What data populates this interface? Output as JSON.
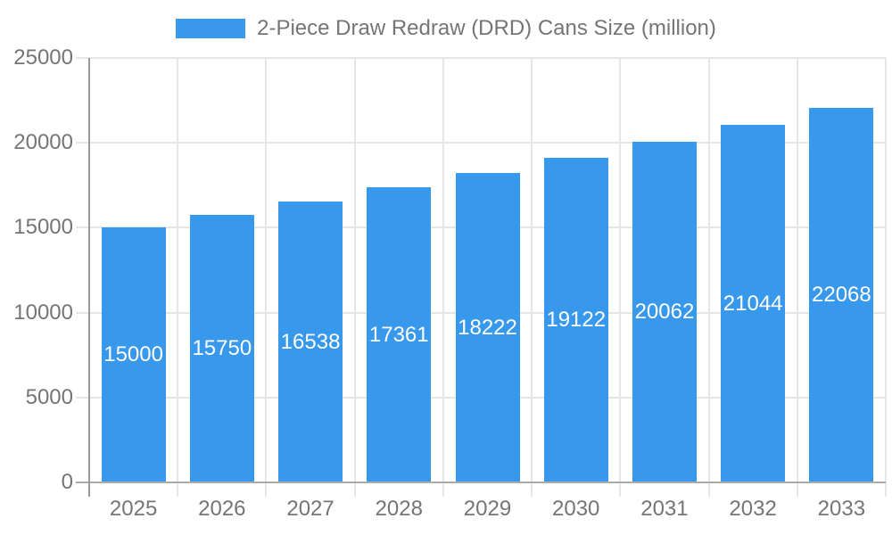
{
  "legend": {
    "label": "2-Piece Draw Redraw (DRD) Cans Size (million)"
  },
  "chart_data": {
    "type": "bar",
    "title": "2-Piece Draw Redraw (DRD) Cans Size (million)",
    "series_name": "2-Piece Draw Redraw (DRD) Cans Size (million)",
    "categories": [
      "2025",
      "2026",
      "2027",
      "2028",
      "2029",
      "2030",
      "2031",
      "2032",
      "2033"
    ],
    "values": [
      15000,
      15750,
      16538,
      17361,
      18222,
      19122,
      20062,
      21044,
      22068
    ],
    "value_labels": [
      "15000",
      "15750",
      "16538",
      "17361",
      "18222",
      "19122",
      "20062",
      "21044",
      "22068"
    ],
    "xlabel": "",
    "ylabel": "",
    "ylim": [
      0,
      25000
    ],
    "y_ticks": [
      0,
      5000,
      10000,
      15000,
      20000,
      25000
    ],
    "y_tick_labels": [
      "0",
      "5000",
      "10000",
      "15000",
      "20000",
      "25000"
    ],
    "grid": true,
    "legend_position": "top",
    "value_label_position": "inside-middle",
    "colors": {
      "bar": "#3898EC",
      "value_label": "#FFFFFF",
      "grid": "#E6E6E6",
      "y_axis": "#999999",
      "x_axis": "#AAAAAA",
      "text": "#757575",
      "background": "#FFFFFF"
    }
  }
}
